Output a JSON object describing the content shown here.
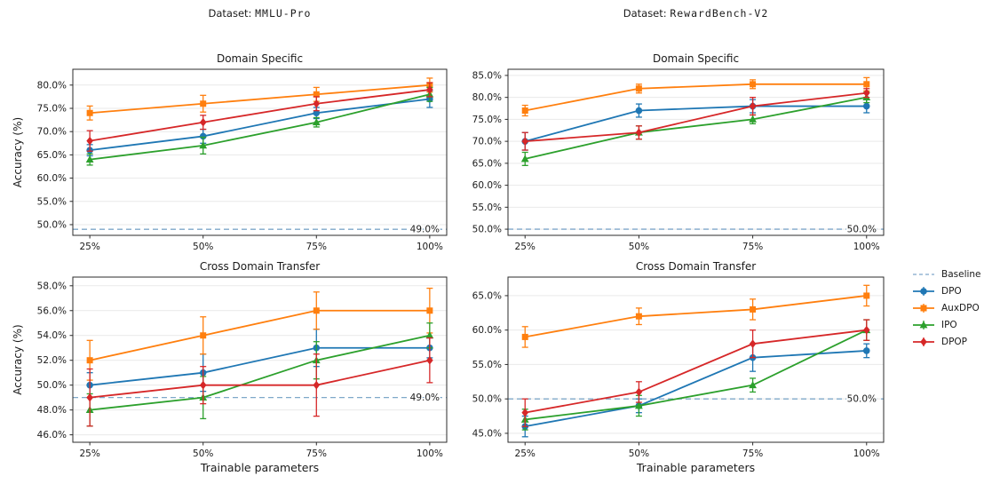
{
  "figure_titles": [
    {
      "prefix": "Dataset: ",
      "name": "MMLU-Pro"
    },
    {
      "prefix": "Dataset: ",
      "name": "RewardBench-V2"
    }
  ],
  "colors": {
    "dpo": "#1f77b4",
    "auxdpo": "#ff7f0e",
    "ipo": "#2ca02c",
    "dpop": "#d62728",
    "baseline": "#7fa8c9",
    "grid": "#e9e9e9",
    "axis": "#2b2b2b",
    "text": "#1a1a1a"
  },
  "legend": {
    "items": [
      {
        "label": "Baseline",
        "type": "dashed",
        "color_key": "baseline"
      },
      {
        "label": "DPO",
        "type": "line-marker",
        "marker": "circle",
        "color_key": "dpo"
      },
      {
        "label": "AuxDPO",
        "type": "line-marker",
        "marker": "square",
        "color_key": "auxdpo"
      },
      {
        "label": "IPO",
        "type": "line-marker",
        "marker": "triangle",
        "color_key": "ipo"
      },
      {
        "label": "DPOP",
        "type": "line-marker",
        "marker": "diamond",
        "color_key": "dpop"
      }
    ]
  },
  "chart_data": [
    {
      "type": "line",
      "dataset": "MMLU-Pro",
      "title": "Domain Specific",
      "ylabel": "Accuracy (%)",
      "xlabel": "",
      "x": [
        25,
        50,
        75,
        100
      ],
      "x_ticklabels": [
        "25%",
        "50%",
        "75%",
        "100%"
      ],
      "xlim": [
        21.25,
        103.75
      ],
      "yticks": [
        50,
        55,
        60,
        65,
        70,
        75,
        80
      ],
      "ylim": [
        47.7,
        83.4
      ],
      "baseline": {
        "value": 49.0,
        "label": "49.0%"
      },
      "series": [
        {
          "name": "DPO",
          "marker": "circle",
          "color_key": "dpo",
          "values": [
            66,
            69,
            74,
            77
          ],
          "errors": [
            1.2,
            1.5,
            1.2,
            1.8
          ]
        },
        {
          "name": "AuxDPO",
          "marker": "square",
          "color_key": "auxdpo",
          "values": [
            74,
            76,
            78,
            80
          ],
          "errors": [
            1.5,
            1.8,
            1.5,
            1.5
          ]
        },
        {
          "name": "IPO",
          "marker": "triangle",
          "color_key": "ipo",
          "values": [
            64,
            67,
            72,
            78
          ],
          "errors": [
            1.2,
            1.8,
            1.0,
            1.5
          ]
        },
        {
          "name": "DPOP",
          "marker": "diamond",
          "color_key": "dpop",
          "values": [
            68,
            72,
            76,
            79
          ],
          "errors": [
            2.2,
            1.5,
            1.5,
            1.5
          ]
        }
      ]
    },
    {
      "type": "line",
      "dataset": "RewardBench-V2",
      "title": "Domain Specific",
      "ylabel": "",
      "xlabel": "",
      "x": [
        25,
        50,
        75,
        100
      ],
      "x_ticklabels": [
        "25%",
        "50%",
        "75%",
        "100%"
      ],
      "xlim": [
        21.25,
        103.75
      ],
      "yticks": [
        50,
        55,
        60,
        65,
        70,
        75,
        80,
        85
      ],
      "ylim": [
        48.6,
        86.4
      ],
      "baseline": {
        "value": 50.0,
        "label": "50.0%"
      },
      "series": [
        {
          "name": "DPO",
          "marker": "circle",
          "color_key": "dpo",
          "values": [
            70,
            77,
            78,
            78
          ],
          "errors": [
            2.0,
            1.5,
            1.5,
            1.5
          ]
        },
        {
          "name": "AuxDPO",
          "marker": "square",
          "color_key": "auxdpo",
          "values": [
            77,
            82,
            83,
            83
          ],
          "errors": [
            1.2,
            1.0,
            1.0,
            1.5
          ]
        },
        {
          "name": "IPO",
          "marker": "triangle",
          "color_key": "ipo",
          "values": [
            66,
            72,
            75,
            80
          ],
          "errors": [
            1.5,
            1.5,
            1.0,
            1.2
          ]
        },
        {
          "name": "DPOP",
          "marker": "diamond",
          "color_key": "dpop",
          "values": [
            70,
            72,
            78,
            81
          ],
          "errors": [
            2.0,
            1.5,
            2.0,
            1.0
          ]
        }
      ]
    },
    {
      "type": "line",
      "dataset": "MMLU-Pro",
      "title": "Cross Domain Transfer",
      "ylabel": "Accuracy (%)",
      "xlabel": "Trainable parameters",
      "x": [
        25,
        50,
        75,
        100
      ],
      "x_ticklabels": [
        "25%",
        "50%",
        "75%",
        "100%"
      ],
      "xlim": [
        21.25,
        103.75
      ],
      "yticks": [
        46,
        48,
        50,
        52,
        54,
        56,
        58
      ],
      "ylim": [
        45.4,
        58.7
      ],
      "baseline": {
        "value": 49.0,
        "label": "49.0%"
      },
      "series": [
        {
          "name": "DPO",
          "marker": "circle",
          "color_key": "dpo",
          "values": [
            50,
            51,
            53,
            53
          ],
          "errors": [
            1.0,
            1.5,
            1.5,
            0.8
          ]
        },
        {
          "name": "AuxDPO",
          "marker": "square",
          "color_key": "auxdpo",
          "values": [
            52,
            54,
            56,
            56
          ],
          "errors": [
            1.6,
            1.5,
            1.5,
            1.8
          ]
        },
        {
          "name": "IPO",
          "marker": "triangle",
          "color_key": "ipo",
          "values": [
            48,
            49,
            52,
            54
          ],
          "errors": [
            1.3,
            1.7,
            1.5,
            1.0
          ]
        },
        {
          "name": "DPOP",
          "marker": "diamond",
          "color_key": "dpop",
          "values": [
            49,
            50,
            50,
            52
          ],
          "errors": [
            2.3,
            1.5,
            2.5,
            1.8
          ]
        }
      ]
    },
    {
      "type": "line",
      "dataset": "RewardBench-V2",
      "title": "Cross Domain Transfer",
      "ylabel": "",
      "xlabel": "Trainable parameters",
      "x": [
        25,
        50,
        75,
        100
      ],
      "x_ticklabels": [
        "25%",
        "50%",
        "75%",
        "100%"
      ],
      "xlim": [
        21.25,
        103.75
      ],
      "yticks": [
        45,
        50,
        55,
        60,
        65
      ],
      "ylim": [
        43.7,
        67.7
      ],
      "baseline": {
        "value": 50.0,
        "label": "50.0%"
      },
      "series": [
        {
          "name": "DPO",
          "marker": "circle",
          "color_key": "dpo",
          "values": [
            46,
            49,
            56,
            57
          ],
          "errors": [
            1.5,
            1.0,
            2.0,
            1.0
          ]
        },
        {
          "name": "AuxDPO",
          "marker": "square",
          "color_key": "auxdpo",
          "values": [
            59,
            62,
            63,
            65
          ],
          "errors": [
            1.5,
            1.2,
            1.5,
            1.5
          ]
        },
        {
          "name": "IPO",
          "marker": "triangle",
          "color_key": "ipo",
          "values": [
            47,
            49,
            52,
            60
          ],
          "errors": [
            1.5,
            1.5,
            1.0,
            1.5
          ]
        },
        {
          "name": "DPOP",
          "marker": "diamond",
          "color_key": "dpop",
          "values": [
            48,
            51,
            58,
            60
          ],
          "errors": [
            2.0,
            1.5,
            2.0,
            1.5
          ]
        }
      ]
    }
  ]
}
